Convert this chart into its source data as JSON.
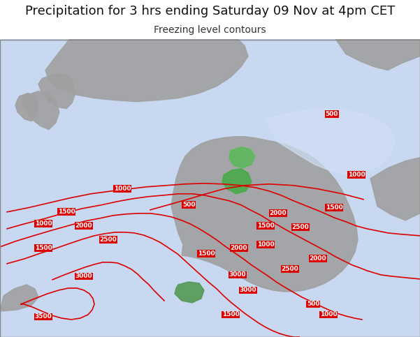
{
  "title": "Precipitation for 3 hrs ending Saturday 09 Nov at 4pm CET",
  "subtitle": "Freezing level contours",
  "title_fontsize": 13,
  "subtitle_fontsize": 10,
  "background_color": "#ffffff",
  "map_bg_color": "#c8d8f0",
  "header_bg": "#f0f0f0",
  "fig_width": 6.01,
  "fig_height": 4.83,
  "dpi": 100
}
